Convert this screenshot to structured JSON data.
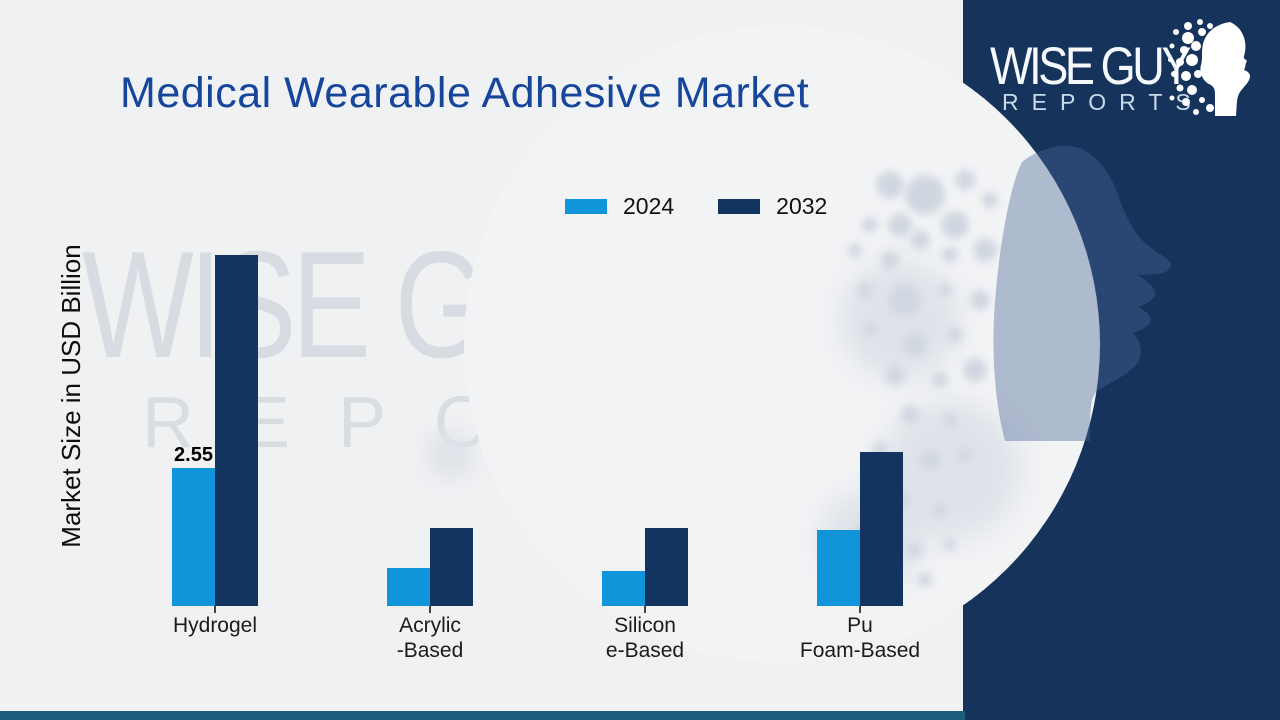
{
  "header": {
    "title": "Medical Wearable Adhesive Market"
  },
  "brand": {
    "logo_line1": "WISE GUY",
    "logo_line2": "REPORTS",
    "panel_color": "#16335c",
    "accent_strip_color": "#1e5b7d"
  },
  "watermark": {
    "line1": "WISE GUY",
    "line2": "REPORTS"
  },
  "colors": {
    "background": "#f0f1f3",
    "title_text": "#16459c",
    "series_2024": "#1195da",
    "series_2032": "#12345e"
  },
  "chart_data": {
    "type": "bar",
    "title": "Medical Wearable Adhesive Market",
    "ylabel": "Market Size in USD Billion",
    "xlabel": "",
    "categories": [
      "Hydrogel",
      "Acrylic\n-Based",
      "Silicon\ne-Based",
      "Pu\nFoam-Based"
    ],
    "series": [
      {
        "name": "2024",
        "color": "#1195da",
        "values": [
          2.55,
          0.7,
          0.65,
          1.4
        ]
      },
      {
        "name": "2032",
        "color": "#12345e",
        "values": [
          6.5,
          1.45,
          1.45,
          2.85
        ]
      }
    ],
    "annotations": [
      {
        "series": "2024",
        "category_index": 0,
        "text": "2.55"
      }
    ],
    "ylim": [
      0,
      7
    ],
    "grid": false,
    "legend_position": "top-right"
  }
}
